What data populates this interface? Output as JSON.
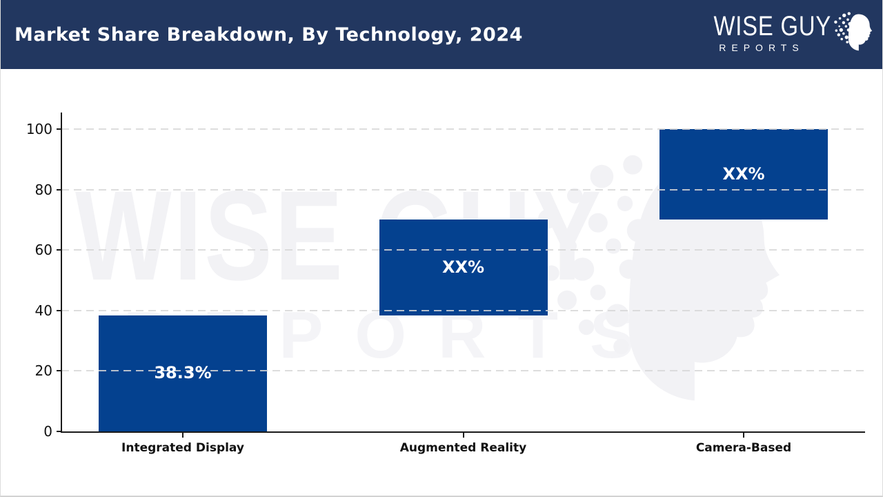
{
  "header": {
    "title": "Market Share Breakdown, By Technology, 2024",
    "logo": {
      "primary": "WISE GUY",
      "secondary": "REPORTS"
    }
  },
  "watermark": {
    "primary": "WISE GUY",
    "secondary": "REPORTS"
  },
  "chart_data": {
    "type": "bar",
    "subtype": "waterfall-stacked-segments",
    "title": "Market Share Breakdown, By Technology, 2024",
    "categories": [
      "Integrated Display",
      "Augmented Reality",
      "Camera-Based"
    ],
    "segments": [
      {
        "category": "Integrated Display",
        "start": 0,
        "end": 38.3,
        "label": "38.3%"
      },
      {
        "category": "Augmented Reality",
        "start": 38.3,
        "end": 70,
        "label": "XX%"
      },
      {
        "category": "Camera-Based",
        "start": 70,
        "end": 100,
        "label": "XX%"
      }
    ],
    "yticks": [
      0,
      20,
      40,
      60,
      80,
      100
    ],
    "ylim": [
      0,
      105.5
    ],
    "xlabel": "",
    "ylabel": "",
    "grid": "dashed-horizontal-over-bars",
    "legend": "none",
    "colors": {
      "bar": "#04418f",
      "grid": "#d7d7d7",
      "axis": "#1a1a1a",
      "bar_label_text": "#ffffff",
      "tick_text": "#111111",
      "header_bg": "#223760",
      "header_text": "#ffffff",
      "watermark": "#f2f2f5",
      "background": "#ffffff"
    }
  }
}
